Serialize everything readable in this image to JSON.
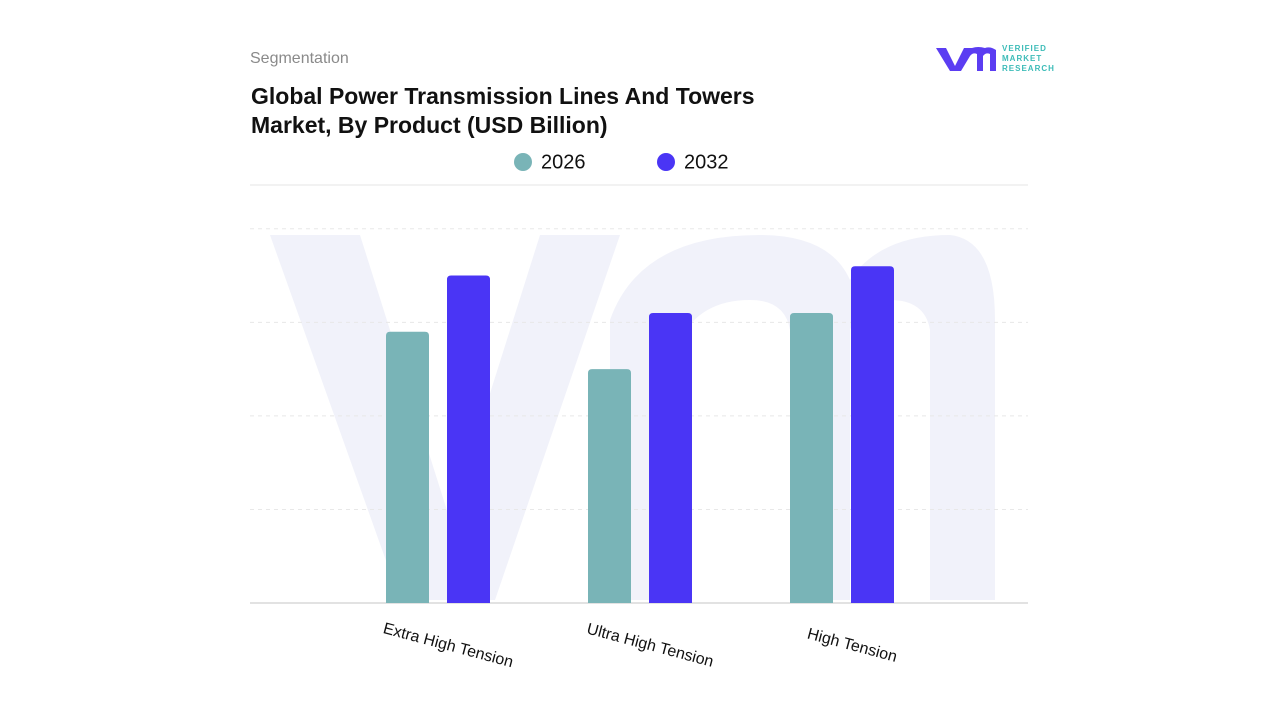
{
  "section": "Segmentation",
  "logo": {
    "lines": [
      "VERIFIED",
      "MARKET",
      "RESEARCH"
    ]
  },
  "chart_data": {
    "type": "bar",
    "title": "Global Power Transmission Lines And Towers Market, By Product (USD Billion)",
    "categories": [
      "Extra High Tension",
      "Ultra High Tension",
      "High Tension"
    ],
    "series": [
      {
        "name": "2026",
        "color": "#79b4b7",
        "values": [
          2.9,
          2.5,
          3.1
        ]
      },
      {
        "name": "2032",
        "color": "#4a35f5",
        "values": [
          3.5,
          3.1,
          3.6
        ]
      }
    ],
    "ylim": [
      0,
      4.5
    ],
    "yticks": [
      0,
      1,
      2,
      3,
      4
    ],
    "show_tick_labels": false,
    "grid": true
  }
}
